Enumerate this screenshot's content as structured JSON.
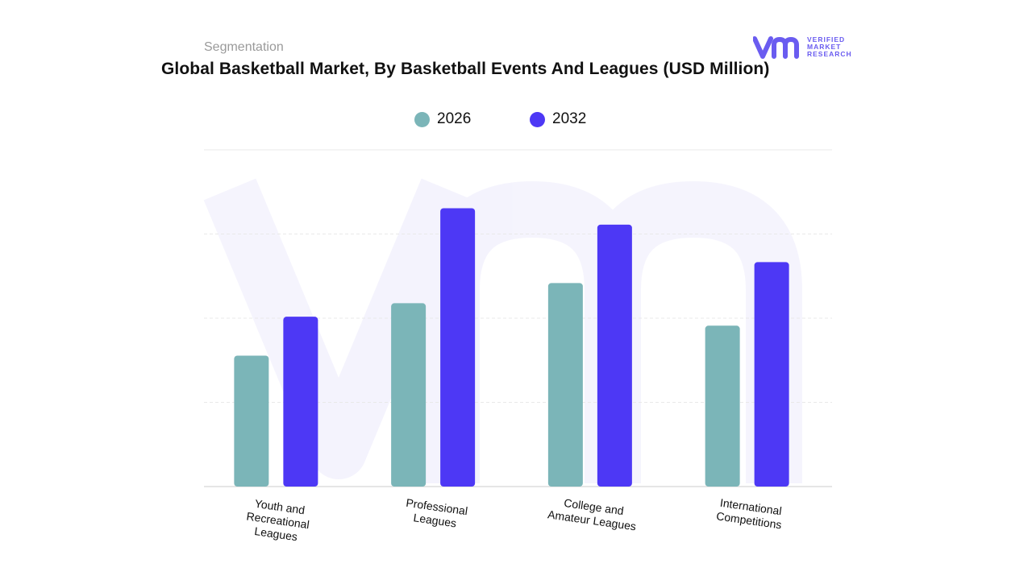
{
  "header": {
    "subtitle": "Segmentation",
    "title": "Global Basketball Market, By Basketball Events And Leagues (USD Million)"
  },
  "logo": {
    "line1": "VERIFIED",
    "line2": "MARKET",
    "line3": "RESEARCH",
    "icon": "vmr-logo-icon"
  },
  "colors": {
    "series_2026": "#7bb5b8",
    "series_2032": "#4d38f5",
    "logo": "#6a5cf0"
  },
  "chart_data": {
    "type": "bar",
    "title": "Global Basketball Market, By Basketball Events And Leagues (USD Million)",
    "xlabel": "",
    "ylabel": "",
    "ylim": [
      0,
      450
    ],
    "grid": true,
    "legend_position": "top-center",
    "categories": [
      "Youth and Recreational Leagues",
      "Professional Leagues",
      "College and Amateur Leagues",
      "International Competitions"
    ],
    "category_lines": [
      [
        "Youth and",
        "Recreational",
        "Leagues"
      ],
      [
        "Professional",
        "Leagues"
      ],
      [
        "College and",
        "Amateur Leagues"
      ],
      [
        "International",
        "Competitions"
      ]
    ],
    "series": [
      {
        "name": "2026",
        "values": [
          175,
          245,
          272,
          215
        ]
      },
      {
        "name": "2032",
        "values": [
          227,
          372,
          350,
          300
        ]
      }
    ]
  }
}
